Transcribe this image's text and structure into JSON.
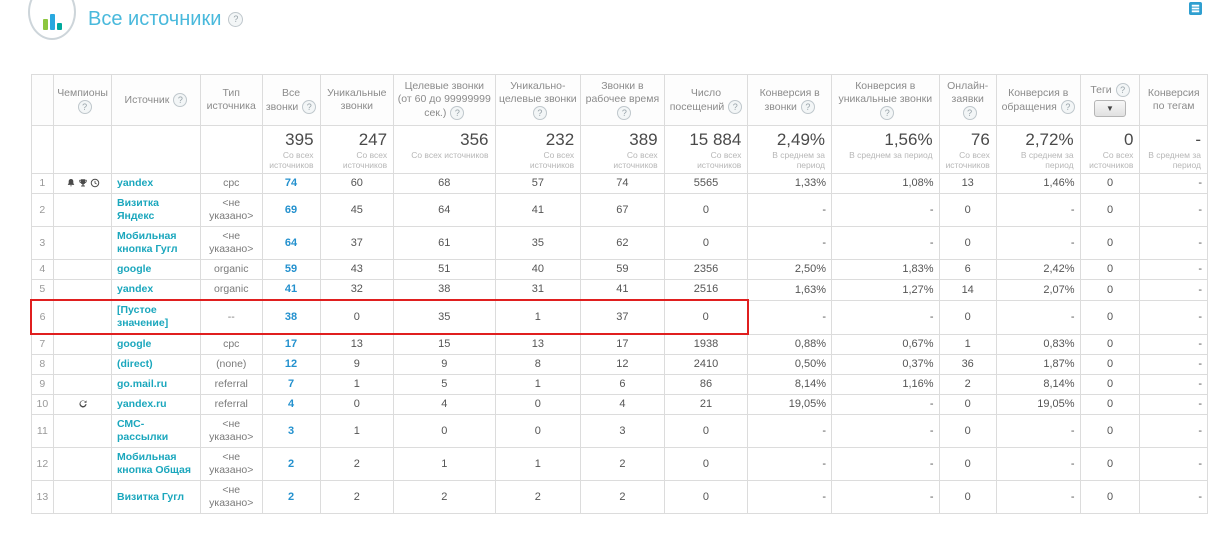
{
  "header": {
    "title": "Все источники"
  },
  "colors": {
    "title_blue": "#49b9dc",
    "source_link_teal": "#1ba7bd",
    "calls_link_blue": "#2491ce",
    "highlight_red": "#e01f1f"
  },
  "table": {
    "columns": [
      {
        "key": "num",
        "label": "",
        "help": false
      },
      {
        "key": "champions",
        "label": "Чемпионы",
        "help": true
      },
      {
        "key": "source",
        "label": "Источник",
        "help": true
      },
      {
        "key": "source-type",
        "label": "Тип источника",
        "help": false
      },
      {
        "key": "all-calls",
        "label": "Все звонки",
        "help": true
      },
      {
        "key": "unique-calls",
        "label": "Уникальные звонки",
        "help": false
      },
      {
        "key": "target-calls",
        "label": "Целевые звонки (от 60 до 99999999 сек.)",
        "help": true
      },
      {
        "key": "unique-target-calls",
        "label": "Уникально-целевые звонки",
        "help": true
      },
      {
        "key": "work-time-calls",
        "label": "Звонки в рабочее время",
        "help": true
      },
      {
        "key": "visits",
        "label": "Число посещений",
        "help": true
      },
      {
        "key": "conv-calls",
        "label": "Конверсия в звонки",
        "help": true
      },
      {
        "key": "conv-unique-calls",
        "label": "Конверсия в уникальные звонки",
        "help": true
      },
      {
        "key": "online-requests",
        "label": "Онлайн-заявки",
        "help": true
      },
      {
        "key": "conv-appeals",
        "label": "Конверсия в обращения",
        "help": true
      },
      {
        "key": "tags",
        "label": "Теги",
        "help": true,
        "dropdown": true
      },
      {
        "key": "conv-tags",
        "label": "Конверсия по тегам",
        "help": false
      }
    ],
    "totals": [
      {
        "value": "395",
        "caption": "Со всех источников"
      },
      {
        "value": "247",
        "caption": "Со всех источников"
      },
      {
        "value": "356",
        "caption": "Со всех источников"
      },
      {
        "value": "232",
        "caption": "Со всех источников"
      },
      {
        "value": "389",
        "caption": "Со всех источников"
      },
      {
        "value": "15 884",
        "caption": "Со всех источников"
      },
      {
        "value": "2,49%",
        "caption": "В среднем за период"
      },
      {
        "value": "1,56%",
        "caption": "В среднем за период"
      },
      {
        "value": "76",
        "caption": "Со всех источников"
      },
      {
        "value": "2,72%",
        "caption": "В среднем за период"
      },
      {
        "value": "0",
        "caption": "Со всех источников"
      },
      {
        "value": "-",
        "caption": "В среднем за период"
      }
    ],
    "rows": [
      {
        "num": "1",
        "champions": [
          "bell",
          "trophy",
          "clock"
        ],
        "source": "yandex",
        "type": "cpc",
        "cells": [
          "74",
          "60",
          "68",
          "57",
          "74",
          "5565",
          "1,33%",
          "1,08%",
          "13",
          "1,46%",
          "0",
          "-"
        ]
      },
      {
        "num": "2",
        "champions": [],
        "source": "Визитка Яндекс",
        "type": "<не указано>",
        "cells": [
          "69",
          "45",
          "64",
          "41",
          "67",
          "0",
          "-",
          "-",
          "0",
          "-",
          "0",
          "-"
        ]
      },
      {
        "num": "3",
        "champions": [],
        "source": "Мобильная кнопка Гугл",
        "type": "<не указано>",
        "cells": [
          "64",
          "37",
          "61",
          "35",
          "62",
          "0",
          "-",
          "-",
          "0",
          "-",
          "0",
          "-"
        ]
      },
      {
        "num": "4",
        "champions": [],
        "source": "google",
        "type": "organic",
        "cells": [
          "59",
          "43",
          "51",
          "40",
          "59",
          "2356",
          "2,50%",
          "1,83%",
          "6",
          "2,42%",
          "0",
          "-"
        ]
      },
      {
        "num": "5",
        "champions": [],
        "source": "yandex",
        "type": "organic",
        "cells": [
          "41",
          "32",
          "38",
          "31",
          "41",
          "2516",
          "1,63%",
          "1,27%",
          "14",
          "2,07%",
          "0",
          "-"
        ]
      },
      {
        "num": "6",
        "champions": [],
        "source": "[Пустое значение]",
        "type": "--",
        "highlighted": true,
        "cells": [
          "38",
          "0",
          "35",
          "1",
          "37",
          "0",
          "-",
          "-",
          "0",
          "-",
          "0",
          "-"
        ]
      },
      {
        "num": "7",
        "champions": [],
        "source": "google",
        "type": "cpc",
        "cells": [
          "17",
          "13",
          "15",
          "13",
          "17",
          "1938",
          "0,88%",
          "0,67%",
          "1",
          "0,83%",
          "0",
          "-"
        ]
      },
      {
        "num": "8",
        "champions": [],
        "source": "(direct)",
        "type": "(none)",
        "cells": [
          "12",
          "9",
          "9",
          "8",
          "12",
          "2410",
          "0,50%",
          "0,37%",
          "36",
          "1,87%",
          "0",
          "-"
        ]
      },
      {
        "num": "9",
        "champions": [],
        "source": "go.mail.ru",
        "type": "referral",
        "cells": [
          "7",
          "1",
          "5",
          "1",
          "6",
          "86",
          "8,14%",
          "1,16%",
          "2",
          "8,14%",
          "0",
          "-"
        ]
      },
      {
        "num": "10",
        "champions": [
          "refresh"
        ],
        "source": "yandex.ru",
        "type": "referral",
        "cells": [
          "4",
          "0",
          "4",
          "0",
          "4",
          "21",
          "19,05%",
          "-",
          "0",
          "19,05%",
          "0",
          "-"
        ]
      },
      {
        "num": "11",
        "champions": [],
        "source": "СМС-рассылки",
        "type": "<не указано>",
        "cells": [
          "3",
          "1",
          "0",
          "0",
          "3",
          "0",
          "-",
          "-",
          "0",
          "-",
          "0",
          "-"
        ]
      },
      {
        "num": "12",
        "champions": [],
        "source": "Мобильная кнопка Общая",
        "type": "<не указано>",
        "cells": [
          "2",
          "2",
          "1",
          "1",
          "2",
          "0",
          "-",
          "-",
          "0",
          "-",
          "0",
          "-"
        ]
      },
      {
        "num": "13",
        "champions": [],
        "source": "Визитка Гугл",
        "type": "<не указано>",
        "cells": [
          "2",
          "2",
          "2",
          "2",
          "2",
          "0",
          "-",
          "-",
          "0",
          "-",
          "0",
          "-"
        ]
      }
    ]
  }
}
